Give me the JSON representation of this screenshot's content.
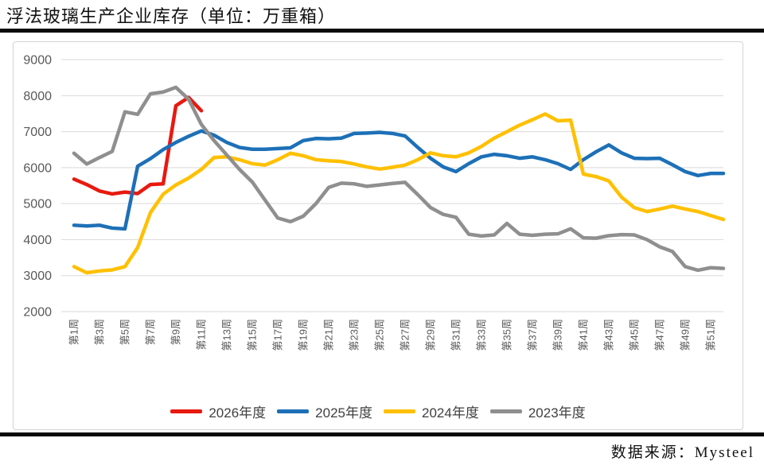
{
  "page": {
    "title": "浮法玻璃生产企业库存（单位：万重箱）",
    "source_note": "数据来源：Mysteel"
  },
  "chart_data": {
    "type": "line",
    "title": "浮法玻璃生产企业库存（单位：万重箱）",
    "grid": "horizontal",
    "legend_position": "bottom",
    "x_axis": {
      "unit": "周",
      "weeks_total": 52,
      "tick_labels": [
        "第1周",
        "第3周",
        "第5周",
        "第7周",
        "第9周",
        "第11周",
        "第13周",
        "第15周",
        "第17周",
        "第19周",
        "第21周",
        "第23周",
        "第25周",
        "第27周",
        "第29周",
        "第31周",
        "第33周",
        "第35周",
        "第37周",
        "第39周",
        "第41周",
        "第43周",
        "第45周",
        "第47周",
        "第49周",
        "第51周"
      ]
    },
    "y_axis": {
      "min": 2000,
      "max": 9000,
      "step": 1000,
      "tick_labels": [
        "2000",
        "3000",
        "4000",
        "5000",
        "6000",
        "7000",
        "8000",
        "9000"
      ]
    },
    "colors": {
      "grid": "#d9d9d9",
      "axis_text": "#595959"
    },
    "series": [
      {
        "name": "2026年度",
        "color": "#e8190f",
        "start_week": 1,
        "values": [
          5680,
          5530,
          5350,
          5270,
          5320,
          5280,
          5530,
          5550,
          7720,
          7950,
          7580
        ]
      },
      {
        "name": "2025年度",
        "color": "#1d70b7",
        "start_week": 1,
        "values": [
          4400,
          4380,
          4400,
          4320,
          4300,
          6040,
          6250,
          6500,
          6700,
          6870,
          7020,
          6900,
          6700,
          6560,
          6510,
          6510,
          6530,
          6550,
          6750,
          6810,
          6800,
          6820,
          6950,
          6960,
          6980,
          6950,
          6880,
          6560,
          6260,
          6020,
          5890,
          6110,
          6300,
          6370,
          6330,
          6260,
          6300,
          6220,
          6110,
          5950,
          6220,
          6440,
          6630,
          6410,
          6260,
          6250,
          6260,
          6080,
          5890,
          5780,
          5840,
          5840
        ]
      },
      {
        "name": "2024年度",
        "color": "#ffc000",
        "start_week": 1,
        "values": [
          3250,
          3080,
          3130,
          3160,
          3250,
          3780,
          4750,
          5260,
          5520,
          5710,
          5950,
          6280,
          6300,
          6220,
          6110,
          6070,
          6220,
          6400,
          6330,
          6220,
          6190,
          6170,
          6100,
          6020,
          5960,
          6010,
          6070,
          6220,
          6410,
          6330,
          6300,
          6410,
          6590,
          6820,
          7000,
          7180,
          7330,
          7490,
          7300,
          7320,
          5820,
          5750,
          5630,
          5180,
          4890,
          4780,
          4850,
          4930,
          4850,
          4780,
          4670,
          4560
        ]
      },
      {
        "name": "2023年度",
        "color": "#8f8f8f",
        "start_week": 1,
        "values": [
          6400,
          6100,
          6280,
          6450,
          7550,
          7480,
          8050,
          8100,
          8230,
          7900,
          7200,
          6750,
          6350,
          5950,
          5600,
          5100,
          4600,
          4500,
          4650,
          5000,
          5450,
          5570,
          5550,
          5480,
          5520,
          5560,
          5590,
          5250,
          4890,
          4700,
          4620,
          4150,
          4100,
          4130,
          4450,
          4150,
          4120,
          4150,
          4160,
          4300,
          4050,
          4040,
          4110,
          4140,
          4130,
          4000,
          3800,
          3670,
          3250,
          3150,
          3220,
          3200
        ]
      }
    ]
  }
}
